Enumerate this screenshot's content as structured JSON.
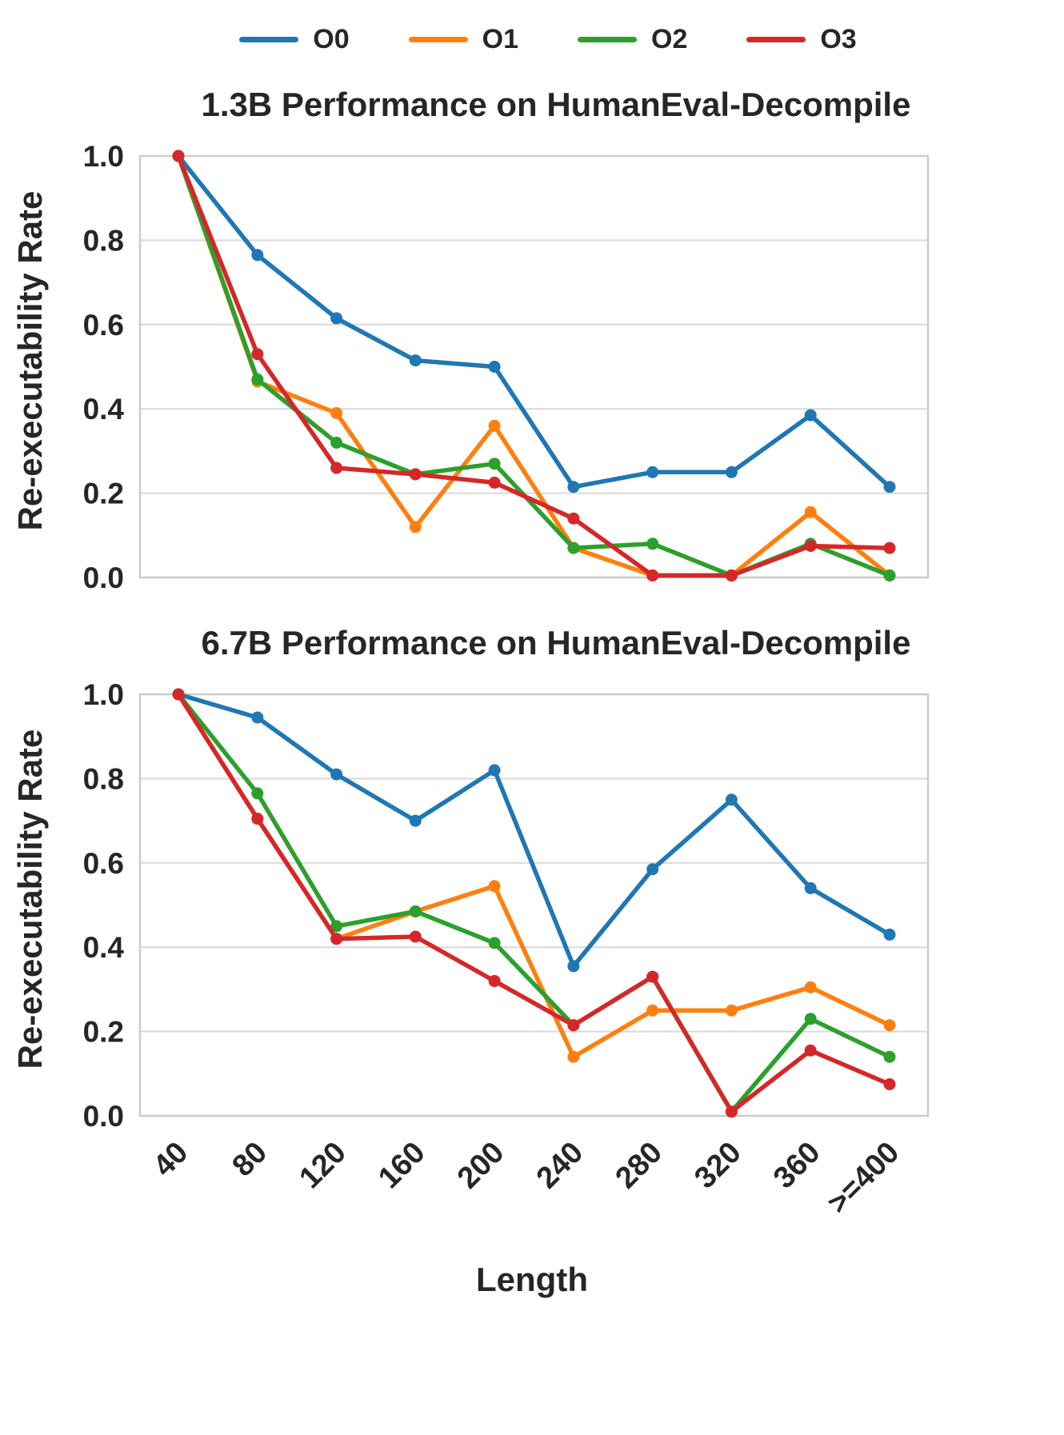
{
  "legend": {
    "items": [
      {
        "label": "O0",
        "color": "#1f77b4"
      },
      {
        "label": "O1",
        "color": "#ff7f0e"
      },
      {
        "label": "O2",
        "color": "#2ca02c"
      },
      {
        "label": "O3",
        "color": "#d62728"
      }
    ]
  },
  "xlabel": "Length",
  "style": {
    "grid_color": "#d9d9d9",
    "spine_color": "#cccccc",
    "text_color": "#262626",
    "background": "#ffffff"
  },
  "chart_data": [
    {
      "type": "line",
      "title": "1.3B Performance on HumanEval-Decompile",
      "ylabel": "Re-executability Rate",
      "xlabel": "Length",
      "ylim": [
        0.0,
        1.0
      ],
      "yticks": [
        0.0,
        0.2,
        0.4,
        0.6,
        0.8,
        1.0
      ],
      "grid": "horizontal",
      "legend_position": "top",
      "show_x_ticks": false,
      "categories": [
        "40",
        "80",
        "120",
        "160",
        "200",
        "240",
        "280",
        "320",
        "360",
        ">=400"
      ],
      "series": [
        {
          "name": "O0",
          "color": "#1f77b4",
          "values": [
            1.0,
            0.765,
            0.615,
            0.515,
            0.5,
            0.215,
            0.25,
            0.25,
            0.385,
            0.215
          ]
        },
        {
          "name": "O1",
          "color": "#ff7f0e",
          "values": [
            1.0,
            0.465,
            0.39,
            0.12,
            0.36,
            0.07,
            0.005,
            0.005,
            0.155,
            0.005
          ]
        },
        {
          "name": "O2",
          "color": "#2ca02c",
          "values": [
            1.0,
            0.47,
            0.32,
            0.245,
            0.27,
            0.07,
            0.08,
            0.005,
            0.08,
            0.005
          ]
        },
        {
          "name": "O3",
          "color": "#d62728",
          "values": [
            1.0,
            0.53,
            0.26,
            0.245,
            0.225,
            0.14,
            0.005,
            0.005,
            0.075,
            0.07
          ]
        }
      ]
    },
    {
      "type": "line",
      "title": "6.7B Performance on HumanEval-Decompile",
      "ylabel": "Re-executability Rate",
      "xlabel": "Length",
      "ylim": [
        0.0,
        1.0
      ],
      "yticks": [
        0.0,
        0.2,
        0.4,
        0.6,
        0.8,
        1.0
      ],
      "grid": "horizontal",
      "legend_position": "top",
      "show_x_ticks": true,
      "categories": [
        "40",
        "80",
        "120",
        "160",
        "200",
        "240",
        "280",
        "320",
        "360",
        ">=400"
      ],
      "series": [
        {
          "name": "O0",
          "color": "#1f77b4",
          "values": [
            1.0,
            0.945,
            0.81,
            0.7,
            0.82,
            0.355,
            0.585,
            0.75,
            0.54,
            0.43
          ]
        },
        {
          "name": "O1",
          "color": "#ff7f0e",
          "values": [
            1.0,
            0.705,
            0.42,
            0.485,
            0.545,
            0.14,
            0.25,
            0.25,
            0.305,
            0.215
          ]
        },
        {
          "name": "O2",
          "color": "#2ca02c",
          "values": [
            1.0,
            0.765,
            0.45,
            0.485,
            0.41,
            0.215,
            0.33,
            0.01,
            0.23,
            0.14
          ]
        },
        {
          "name": "O3",
          "color": "#d62728",
          "values": [
            1.0,
            0.705,
            0.42,
            0.425,
            0.32,
            0.215,
            0.33,
            0.01,
            0.155,
            0.075
          ]
        }
      ]
    }
  ]
}
